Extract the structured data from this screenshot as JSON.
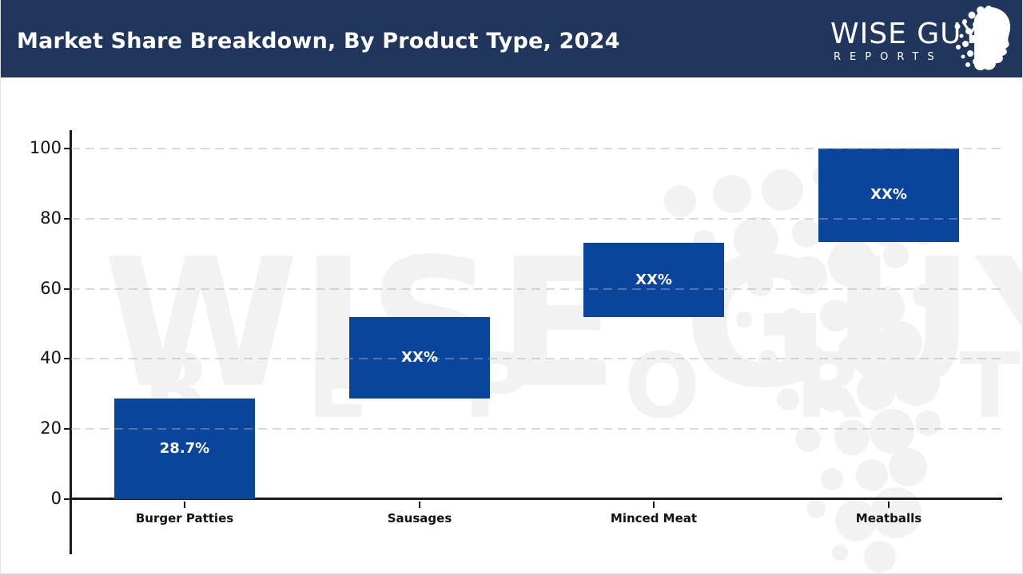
{
  "header": {
    "title": "Market Share Breakdown, By Product Type, 2024",
    "logo": {
      "line1": "WISE GUY",
      "line2": "REPORTS"
    }
  },
  "watermark": {
    "line1": "WISE GUY",
    "line2": "R E P O R T S"
  },
  "colors": {
    "header_bg": "#21365c",
    "bar": "#0b459b",
    "bar_label": "#ffffff",
    "axis": "#1a1a1a",
    "gridline": "#d7d7d7",
    "watermark": "#f2f2f2"
  },
  "chart_data": {
    "type": "bar",
    "subtype": "waterfall",
    "title": "Market Share Breakdown, By Product Type, 2024",
    "categories": [
      "Burger Patties",
      "Sausages",
      "Minced Meat",
      "Meatballs"
    ],
    "series": [
      {
        "name": "Market Share (%)",
        "segments": [
          {
            "category": "Burger Patties",
            "start": 0,
            "end": 28.7,
            "label": "28.7%"
          },
          {
            "category": "Sausages",
            "start": 28.7,
            "end": 52.0,
            "label": "XX%"
          },
          {
            "category": "Minced Meat",
            "start": 52.0,
            "end": 73.2,
            "label": "XX%"
          },
          {
            "category": "Meatballs",
            "start": 73.4,
            "end": 100,
            "label": "XX%"
          }
        ]
      }
    ],
    "xlabel": "",
    "ylabel": "",
    "ylim": [
      0,
      100
    ],
    "yticks": [
      0,
      20,
      40,
      60,
      80,
      100
    ],
    "grid": "horizontal-dashed",
    "legend": "none"
  }
}
